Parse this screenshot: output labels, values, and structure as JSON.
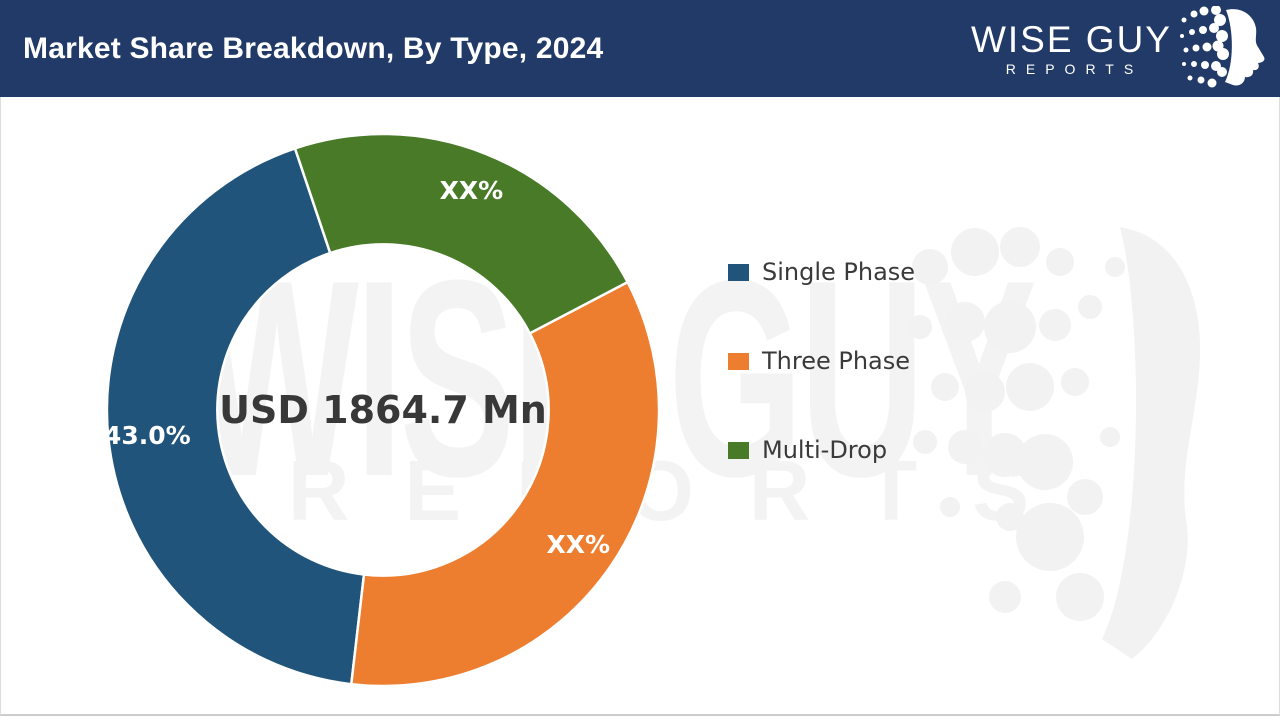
{
  "header": {
    "title": "Market Share Breakdown, By Type, 2024",
    "logo": {
      "primary": "WISE GUY",
      "secondary": "REPORTS"
    }
  },
  "watermark": {
    "primary": "WISE GUY",
    "secondary": "REPORTS"
  },
  "chart_data": {
    "type": "pie",
    "subtype": "donut",
    "title": "Market Share Breakdown, By Type, 2024",
    "center_label": "USD 1864.7 Mn",
    "start_angle_deg": 108.6,
    "direction": "counterclockwise",
    "inner_radius_ratio": 0.6,
    "legend_position": "right",
    "segments": [
      {
        "label": "Single Phase",
        "value_pct": 43.0,
        "display_label": "43.0%",
        "color": "#20547A"
      },
      {
        "label": "Three Phase",
        "value_pct": 34.5,
        "display_label": "XX%",
        "color": "#ED7D2F"
      },
      {
        "label": "Multi-Drop",
        "value_pct": 22.5,
        "display_label": "XX%",
        "color": "#487A28"
      }
    ],
    "values_note": "Three Phase and Multi-Drop shares are masked as XX% in the image; value_pct for them is estimated from arc angles."
  }
}
